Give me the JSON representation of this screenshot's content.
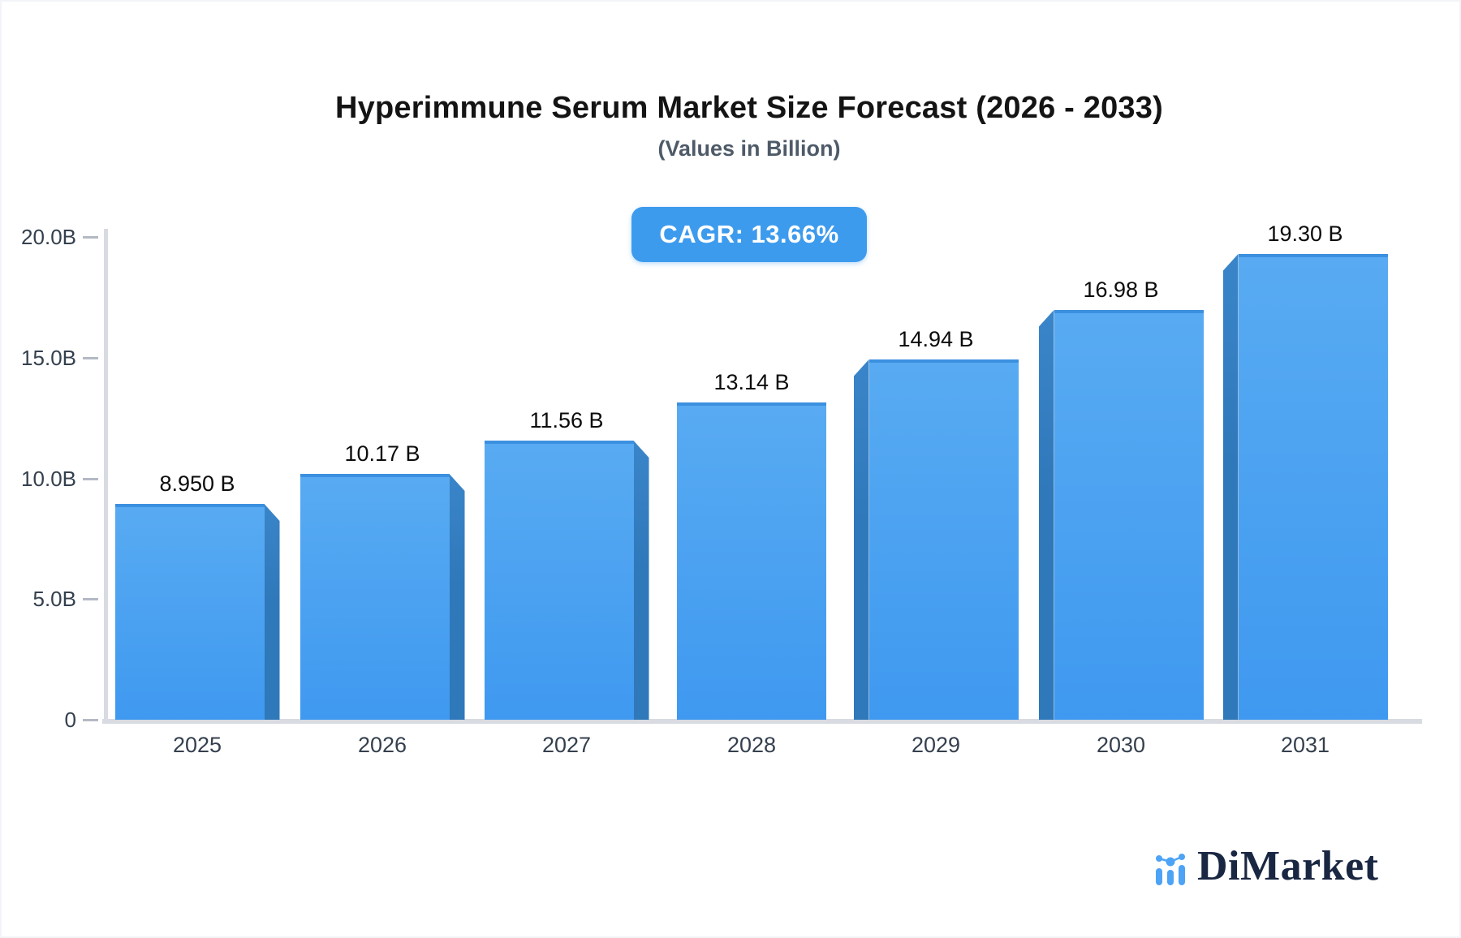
{
  "title": "Hyperimmune Serum Market Size Forecast (2026 - 2033)",
  "subtitle": "(Values in Billion)",
  "badge": {
    "label": "CAGR: 13.66%"
  },
  "logo": {
    "text": "DiMarket"
  },
  "colors": {
    "background": "#ffffff",
    "frame_border": "#f2f4f7",
    "accent_badge": "#3d9bee",
    "bar_gradient_top": "#58abf2",
    "bar_gradient_bottom": "#3f99f0",
    "bar_top_border": "#3c90e0",
    "bar_side": "#2f78ba",
    "bar_side_light": "#3a85c9",
    "axis_line": "#d8dbe1",
    "tick_dash": "#b4bac4",
    "title_text": "#141414",
    "subtitle_text": "#4e5a68",
    "value_label_text": "#0c0c0c",
    "axis_label_text": "#35404e",
    "logo_blue": "#4da3f5",
    "logo_navy": "#1a2742"
  },
  "chart_data": {
    "type": "bar",
    "title": "Hyperimmune Serum Market Size Forecast (2026 - 2033)",
    "subtitle": "(Values in Billion)",
    "cagr_label": "CAGR: 13.66%",
    "categories": [
      "2025",
      "2026",
      "2027",
      "2028",
      "2029",
      "2030",
      "2031"
    ],
    "values": [
      8.95,
      10.17,
      11.56,
      13.14,
      14.94,
      16.98,
      19.3
    ],
    "value_labels": [
      "8.950 B",
      "10.17 B",
      "11.56 B",
      "13.14 B",
      "14.94 B",
      "16.98 B",
      "19.30 B"
    ],
    "ylim": [
      0,
      20
    ],
    "yticks": [
      {
        "value": 0,
        "label": "0"
      },
      {
        "value": 5,
        "label": "5.0B"
      },
      {
        "value": 10,
        "label": "10.0B"
      },
      {
        "value": 15,
        "label": "15.0B"
      },
      {
        "value": 20,
        "label": "20.0B"
      }
    ],
    "grid": false,
    "legend": "none",
    "bar_style": "3d-beveled",
    "xlabel": "",
    "ylabel": ""
  }
}
